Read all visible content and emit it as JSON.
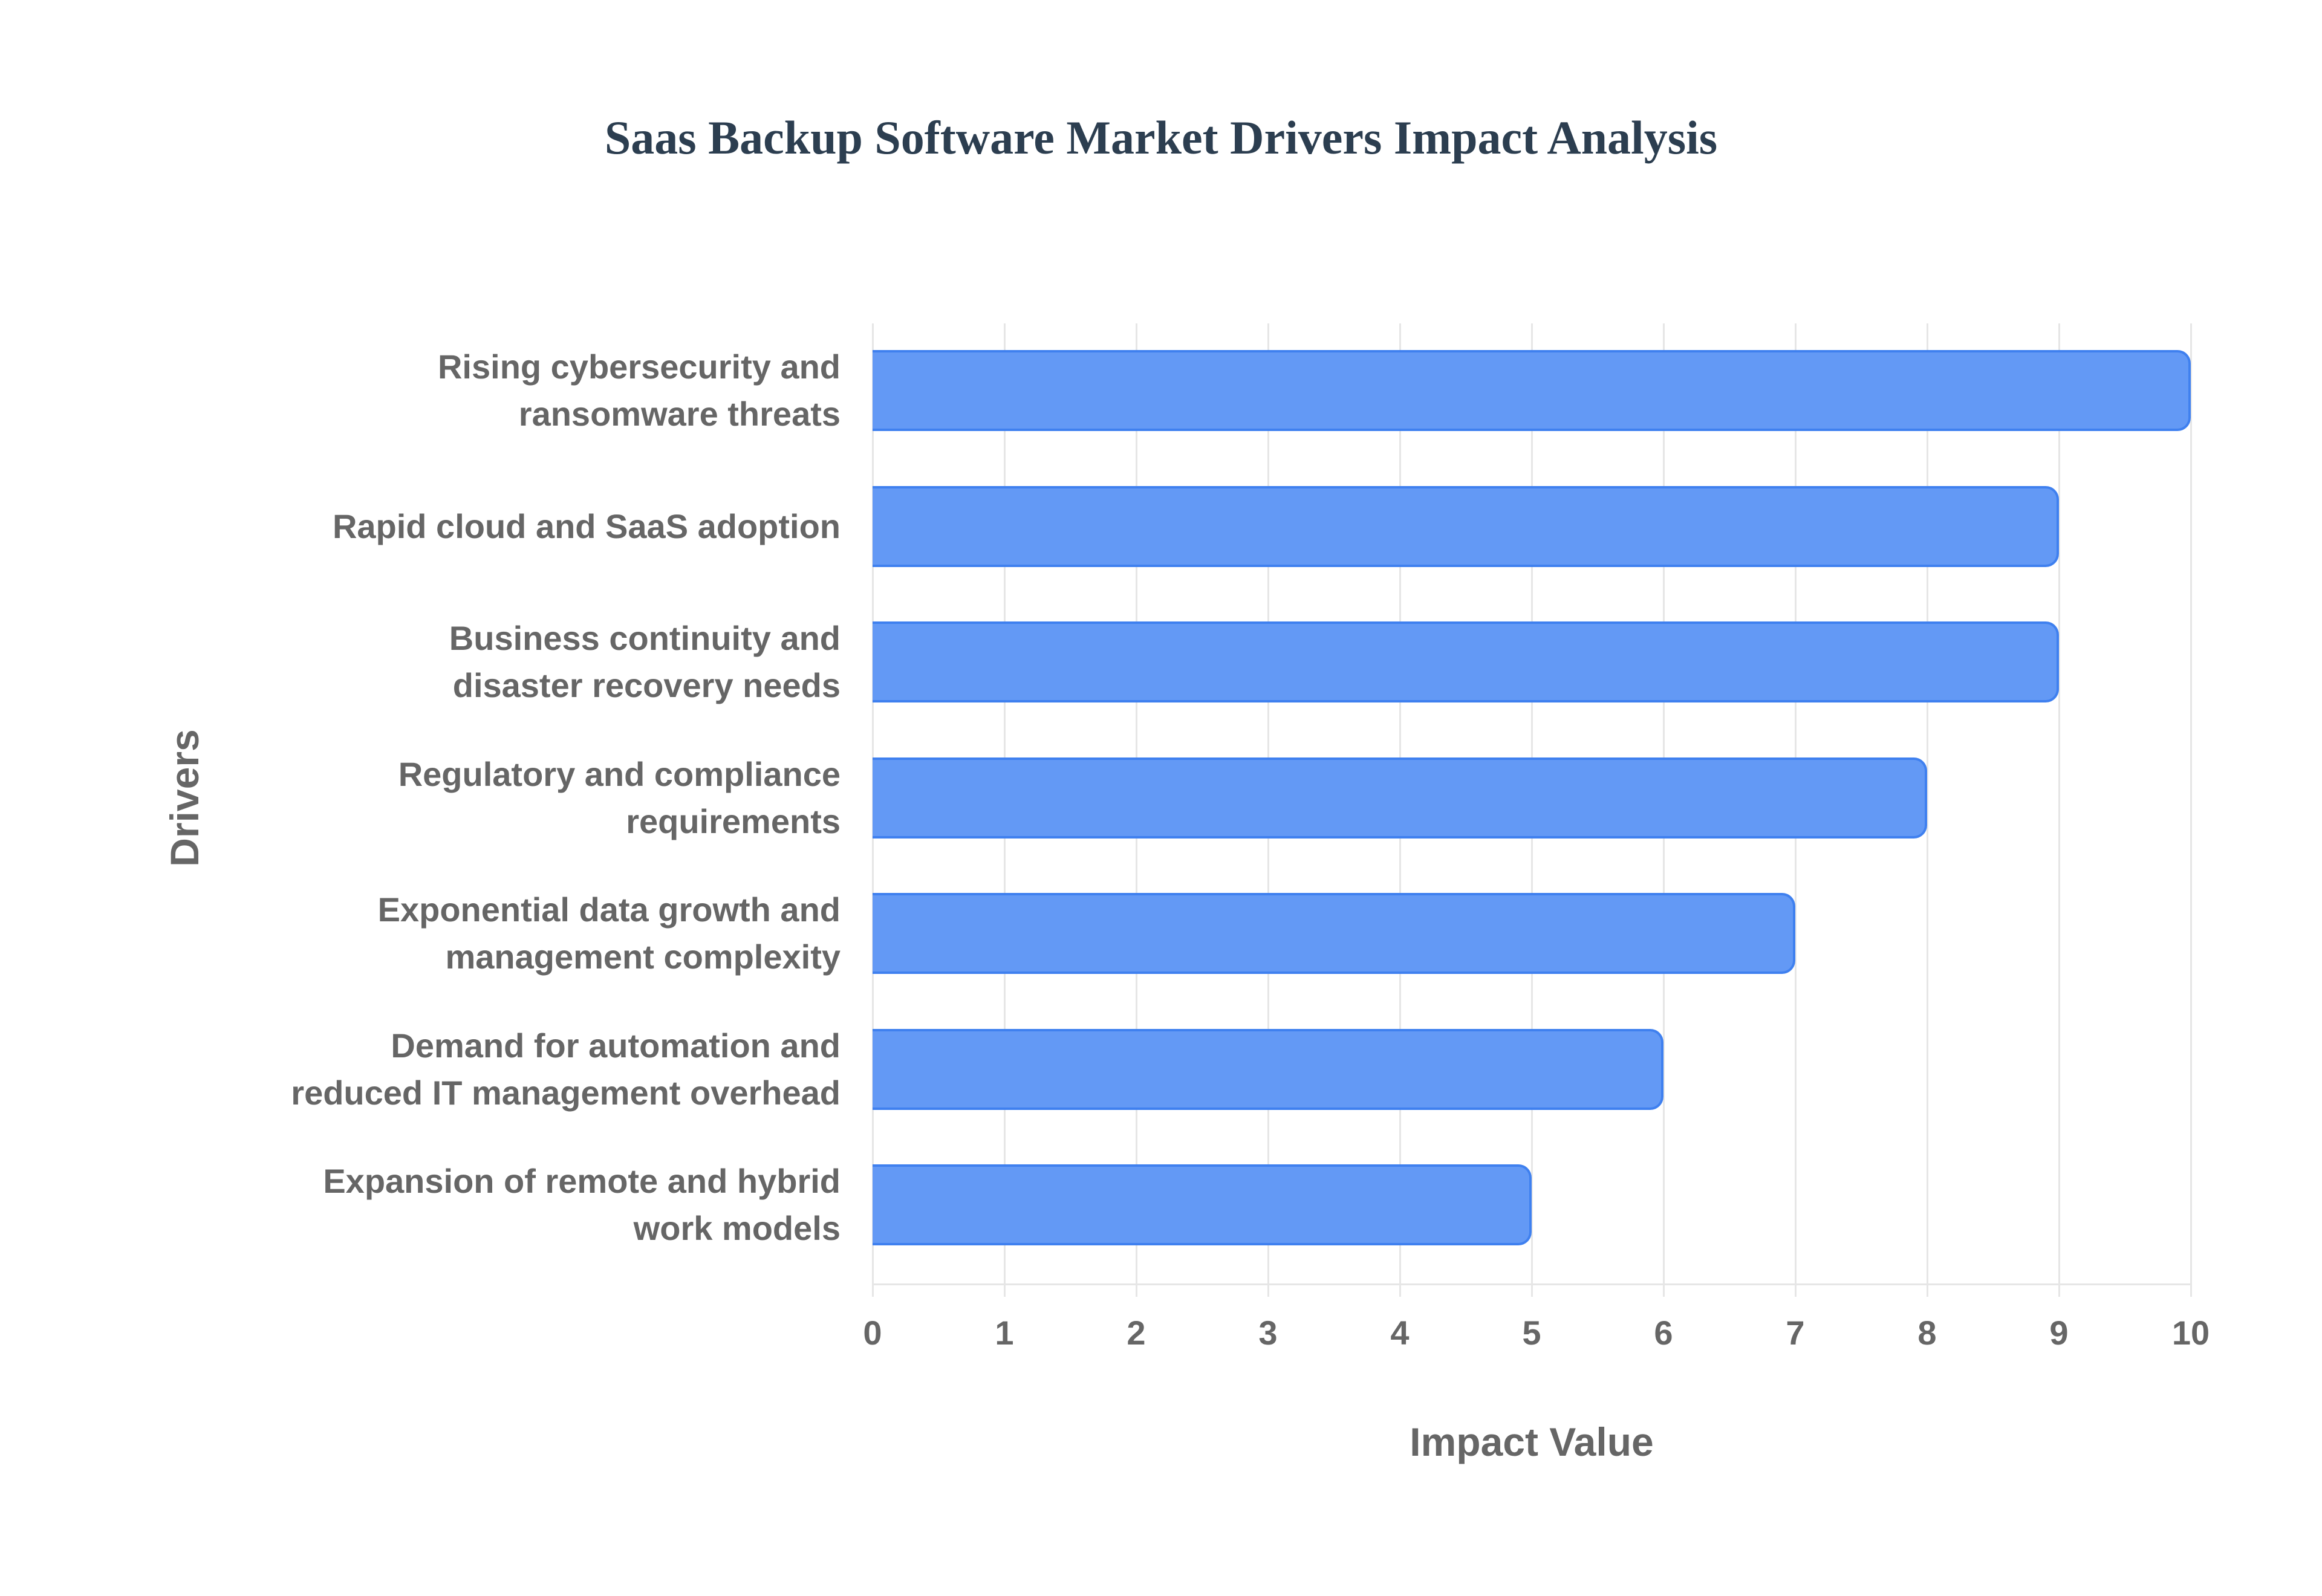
{
  "chart_data": {
    "type": "bar",
    "orientation": "horizontal",
    "title": "Saas Backup Software Market Drivers Impact Analysis",
    "xlabel": "Impact Value",
    "ylabel": "Drivers",
    "categories": [
      "Rising cybersecurity and ransomware threats",
      "Rapid cloud and SaaS adoption",
      "Business continuity and disaster recovery needs",
      "Regulatory and compliance requirements",
      "Exponential data growth and management complexity",
      "Demand for automation and reduced IT management overhead",
      "Expansion of remote and hybrid work models"
    ],
    "category_lines": [
      [
        "Rising cybersecurity and",
        "ransomware threats"
      ],
      [
        "Rapid cloud and SaaS adoption"
      ],
      [
        "Business continuity and",
        "disaster recovery needs"
      ],
      [
        "Regulatory and compliance",
        "requirements"
      ],
      [
        "Exponential data growth and",
        "management complexity"
      ],
      [
        "Demand for automation and",
        "reduced IT management overhead"
      ],
      [
        "Expansion of remote and hybrid",
        "work models"
      ]
    ],
    "values": [
      10,
      9,
      9,
      8,
      7,
      6,
      5
    ],
    "xlim": [
      0,
      10
    ],
    "xticks": [
      "0",
      "1",
      "2",
      "3",
      "4",
      "5",
      "6",
      "7",
      "8",
      "9",
      "10"
    ],
    "grid": true,
    "legend": null,
    "colors": {
      "bar_fill": "#6399f5",
      "bar_border": "#3f80ef",
      "title": "#2c3e50",
      "text": "#666666",
      "grid": "#e6e6e6"
    }
  }
}
